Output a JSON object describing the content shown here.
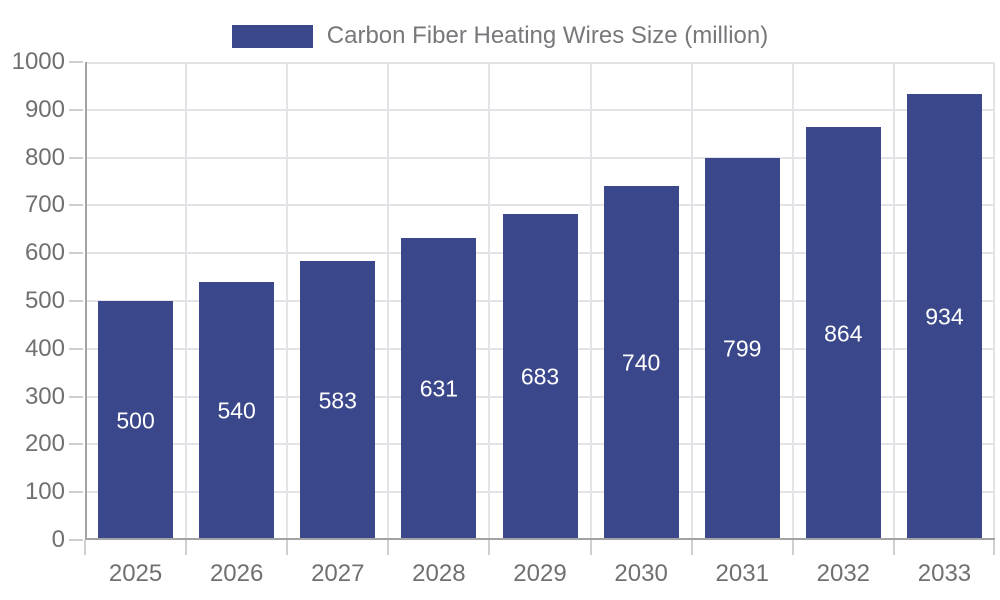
{
  "chart_data": {
    "type": "bar",
    "title": "Carbon Fiber Heating Wires Size (million)",
    "legend": [
      "Carbon Fiber Heating Wires Size (million)"
    ],
    "legend_position": "top",
    "categories": [
      "2025",
      "2026",
      "2027",
      "2028",
      "2029",
      "2030",
      "2031",
      "2032",
      "2033"
    ],
    "values": [
      500,
      540,
      583,
      631,
      683,
      740,
      799,
      864,
      934
    ],
    "xlabel": "",
    "ylabel": "",
    "ylim": [
      0,
      1000
    ],
    "y_ticks": [
      0,
      100,
      200,
      300,
      400,
      500,
      600,
      700,
      800,
      900,
      1000
    ],
    "grid": true,
    "value_labels": "inside-center"
  },
  "colors": {
    "bar": "#3A478B",
    "value_label": "#FFFFFF",
    "gridline": "#E4E4E8",
    "axis_line": "#A3A3A3",
    "tick_line": "#CFCFCF",
    "tick_label": "#707070",
    "legend_text": "#77787B",
    "background": "#FFFFFF"
  }
}
